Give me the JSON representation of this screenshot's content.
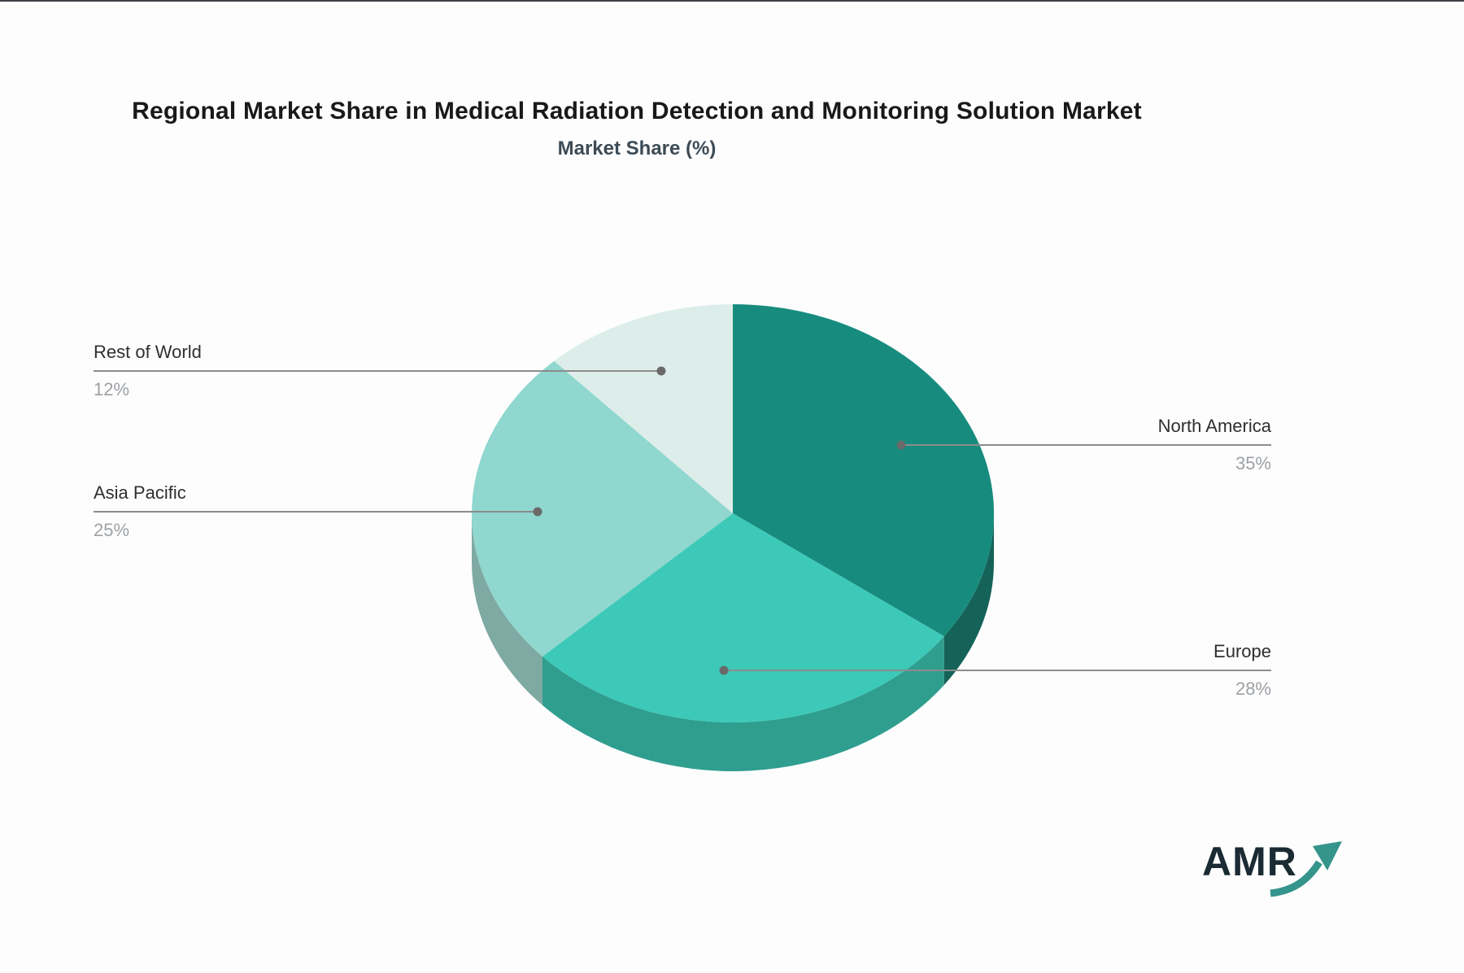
{
  "page": {
    "background": "#fdfdfe",
    "top_border_color": "#3f3f46"
  },
  "chart_data": {
    "type": "pie",
    "style": "3d-pie",
    "title": "Regional Market Share in Medical Radiation Detection and Monitoring Solution Market",
    "subtitle": "Market Share (%)",
    "title_color": "#191919",
    "subtitle_color": "#3d4b55",
    "unit": "%",
    "rotation": "clockwise-from-top",
    "legend": "none",
    "slices": [
      {
        "label": "North America",
        "value": 35,
        "display_value": "35%",
        "color": "#178c7e",
        "side_color": "#156358",
        "label_side": "right",
        "dot": [
          1108,
          547
        ]
      },
      {
        "label": "Europe",
        "value": 28,
        "display_value": "28%",
        "color": "#3dc9b8",
        "side_color": "#2f9e8f",
        "label_side": "right",
        "dot": [
          890,
          824
        ]
      },
      {
        "label": "Asia Pacific",
        "value": 25,
        "display_value": "25%",
        "color": "#8fd7cf",
        "side_color": "#7fa9a3",
        "label_side": "left",
        "dot": [
          661,
          629
        ]
      },
      {
        "label": "Rest of World",
        "value": 12,
        "display_value": "12%",
        "color": "#ddeeea",
        "side_color": "#c2d8d4",
        "label_side": "left",
        "dot": [
          813,
          456
        ]
      }
    ],
    "label_line_color": "#8c8c8c",
    "label_dot_color": "#6a6a6a",
    "label_text_color": "#2f2f2f",
    "value_text_color": "#9da1a4"
  },
  "logo": {
    "text": "AMR",
    "color": "#1b2b33",
    "arrow_color": "#35948b"
  }
}
